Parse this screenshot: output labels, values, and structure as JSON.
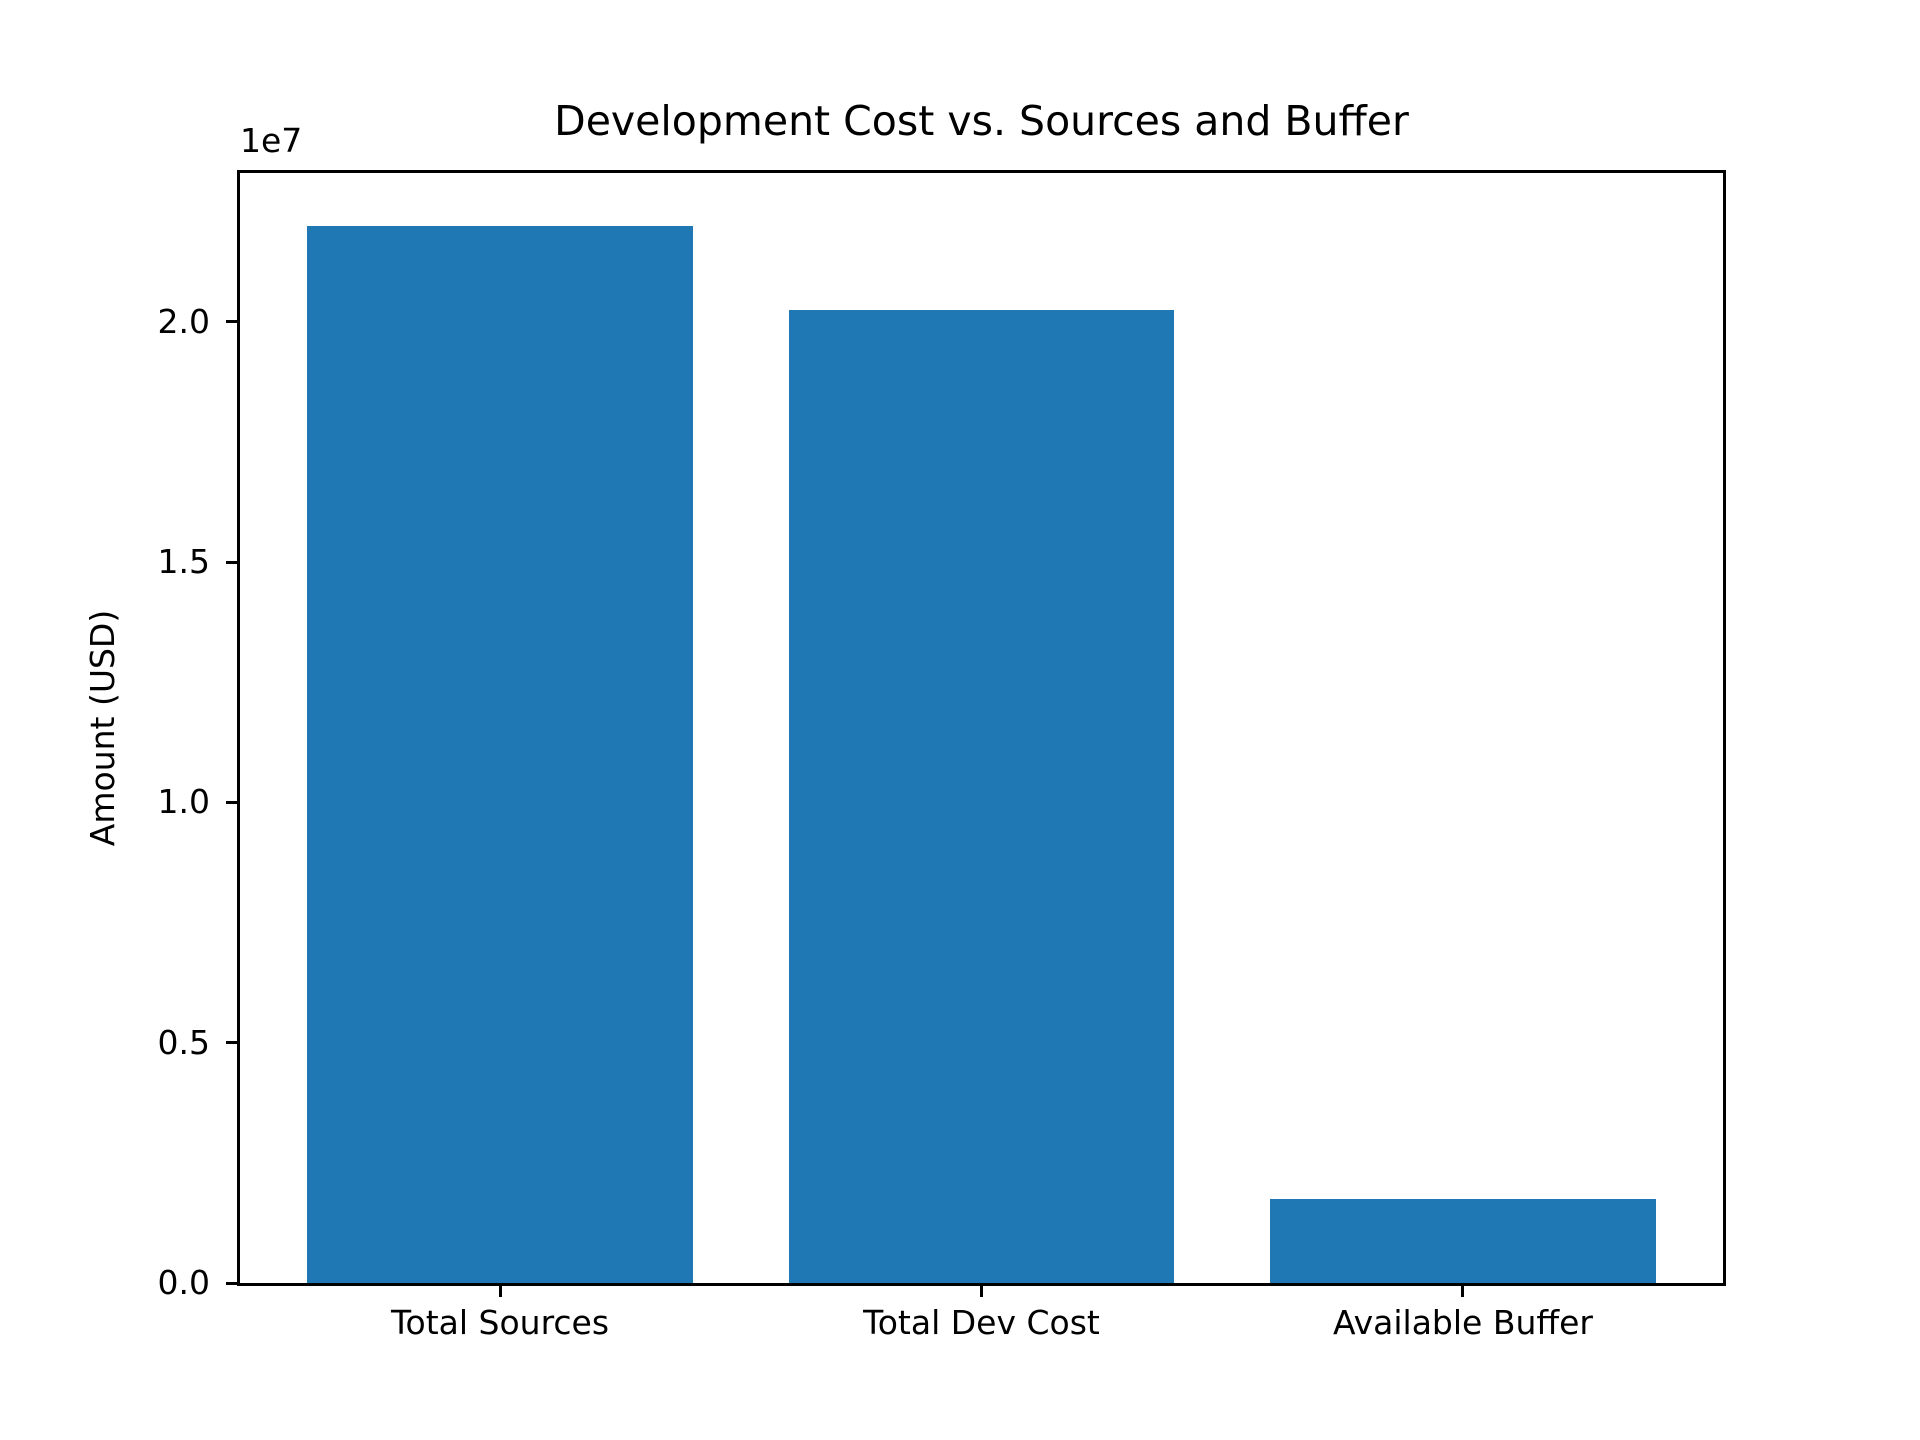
{
  "chart_data": {
    "type": "bar",
    "title": "Development Cost vs. Sources and Buffer",
    "xlabel": "",
    "ylabel": "Amount (USD)",
    "y_offset_label": "1e7",
    "categories": [
      "Total Sources",
      "Total Dev Cost",
      "Available Buffer"
    ],
    "values": [
      22000000,
      20250000,
      1750000
    ],
    "bar_color": "#1f77b4",
    "text_color": "#000000",
    "spine_color": "#000000",
    "bar_width": 0.8,
    "xlim": [
      -0.54,
      2.54
    ],
    "ylim": [
      0,
      23100000
    ],
    "yticks": [
      {
        "value": 0,
        "label": "0.0"
      },
      {
        "value": 5000000,
        "label": "0.5"
      },
      {
        "value": 10000000,
        "label": "1.0"
      },
      {
        "value": 15000000,
        "label": "1.5"
      },
      {
        "value": 20000000,
        "label": "2.0"
      }
    ],
    "grid": false,
    "legend": "none",
    "background": "#ffffff"
  }
}
